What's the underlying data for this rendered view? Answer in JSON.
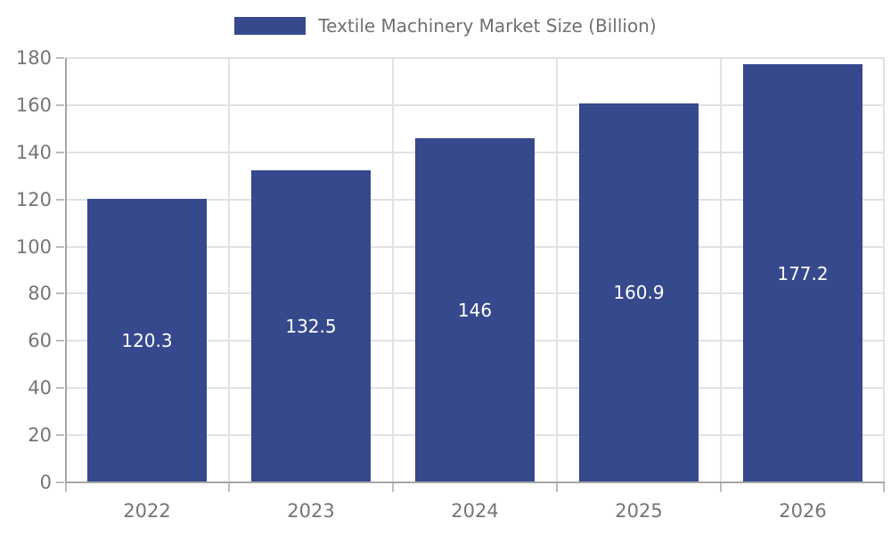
{
  "legend": {
    "label": "Textile Machinery Market Size (Billion)"
  },
  "chart_data": {
    "type": "bar",
    "title": "Textile Machinery Market Size (Billion)",
    "categories": [
      "2022",
      "2023",
      "2024",
      "2025",
      "2026"
    ],
    "values": [
      120.3,
      132.5,
      146,
      160.9,
      177.2
    ],
    "value_labels": [
      "120.3",
      "132.5",
      "146",
      "160.9",
      "177.2"
    ],
    "xlabel": "",
    "ylabel": "",
    "ylim": [
      0,
      180
    ],
    "ytick_step": 20,
    "ytick_labels": [
      "0",
      "20",
      "40",
      "60",
      "80",
      "100",
      "120",
      "140",
      "160",
      "180"
    ],
    "grid": true,
    "legend_position": "top-center",
    "colors": {
      "bar": "#35498c",
      "bar_label": "#ffffff",
      "axis_text": "#757575",
      "legend_text": "#707070",
      "gridline": "#e2e2e2",
      "axis_line": "#a6a6a6",
      "tick": "#bdbdbd",
      "plot_border_right": "#e2e2e2",
      "background": "#ffffff"
    }
  }
}
